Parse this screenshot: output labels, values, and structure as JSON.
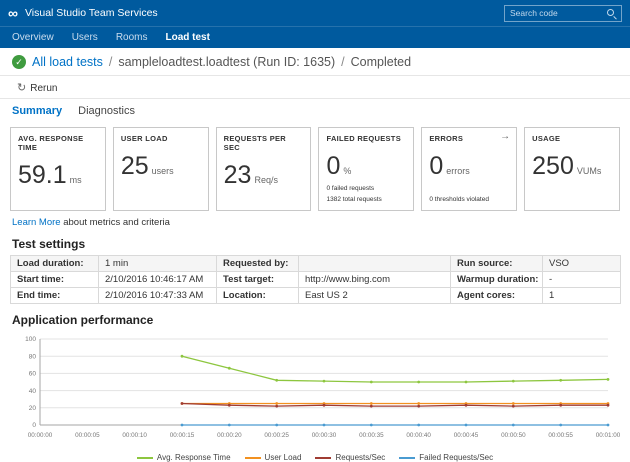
{
  "colors": {
    "header_bg": "#005a9e",
    "accent": "#0072c6",
    "success_green": "#3f9b3f"
  },
  "header": {
    "app_title": "Visual Studio Team Services",
    "search_placeholder": "Search code"
  },
  "nav": {
    "tabs": [
      {
        "label": "Overview"
      },
      {
        "label": "Users"
      },
      {
        "label": "Rooms"
      },
      {
        "label": "Load test"
      }
    ]
  },
  "breadcrumb": {
    "link": "All load tests",
    "sep": "/",
    "run_name": "sampleloadtest.loadtest (Run ID: 1635)",
    "status": "Completed",
    "check_icon": "✓"
  },
  "toolbar": {
    "rerun_label": "Rerun",
    "rerun_icon": "↻"
  },
  "pivots": [
    {
      "label": "Summary"
    },
    {
      "label": "Diagnostics"
    }
  ],
  "cards": [
    {
      "title": "AVG. RESPONSE TIME",
      "value": "59.1",
      "unit": "ms"
    },
    {
      "title": "USER LOAD",
      "value": "25",
      "unit": "users"
    },
    {
      "title": "REQUESTS PER SEC",
      "value": "23",
      "unit": "Req/s"
    },
    {
      "title": "FAILED REQUESTS",
      "value": "0",
      "unit": "%",
      "details": [
        "0 failed requests",
        "1382 total requests"
      ]
    },
    {
      "title": "ERRORS",
      "value": "0",
      "unit": "errors",
      "details": [
        "0 thresholds violated"
      ],
      "arrow": "→"
    },
    {
      "title": "USAGE",
      "value": "250",
      "unit": "VUMs"
    }
  ],
  "learn_more": {
    "link_text": "Learn More",
    "rest_text": " about metrics and criteria"
  },
  "sections": {
    "test_settings": "Test settings",
    "application_performance": "Application performance"
  },
  "test_settings": {
    "rows": [
      [
        {
          "label": "Load duration:",
          "value": "1 min"
        },
        {
          "label": "Requested by:",
          "value": ""
        },
        {
          "label": "Run source:",
          "value": "VSO"
        }
      ],
      [
        {
          "label": "Start time:",
          "value": "2/10/2016 10:46:17 AM"
        },
        {
          "label": "Test target:",
          "value": "http://www.bing.com"
        },
        {
          "label": "Warmup duration:",
          "value": "-"
        }
      ],
      [
        {
          "label": "End time:",
          "value": "2/10/2016 10:47:33 AM"
        },
        {
          "label": "Location:",
          "value": "East US 2"
        },
        {
          "label": "Agent cores:",
          "value": "1"
        }
      ]
    ]
  },
  "chart_data": {
    "type": "line",
    "title": "Application performance",
    "x": [
      "00:00:15",
      "00:00:20",
      "00:00:25",
      "00:00:30",
      "00:00:35",
      "00:00:40",
      "00:00:45",
      "00:00:50",
      "00:00:55",
      "00:01:00"
    ],
    "x_ticks": [
      "00:00:00",
      "00:00:05",
      "00:00:10",
      "00:00:15",
      "00:00:20",
      "00:00:25",
      "00:00:30",
      "00:00:35",
      "00:00:40",
      "00:00:45",
      "00:00:50",
      "00:00:55",
      "00:01:00"
    ],
    "ylim": [
      0,
      100
    ],
    "y_ticks": [
      0,
      20,
      40,
      60,
      80,
      100
    ],
    "grid": true,
    "legend_position": "bottom",
    "series": [
      {
        "name": "Avg. Response Time",
        "color": "#8dc63f",
        "values": [
          80,
          66,
          52,
          51,
          50,
          50,
          50,
          51,
          52,
          53
        ]
      },
      {
        "name": "User Load",
        "color": "#f29120",
        "values": [
          25,
          25,
          25,
          25,
          25,
          25,
          25,
          25,
          25,
          25
        ]
      },
      {
        "name": "Requests/Sec",
        "color": "#a03c33",
        "values": [
          25,
          23,
          22,
          23,
          22,
          22,
          23,
          22,
          23,
          23
        ]
      },
      {
        "name": "Failed Requests/Sec",
        "color": "#4a9bd1",
        "values": [
          0,
          0,
          0,
          0,
          0,
          0,
          0,
          0,
          0,
          0
        ]
      }
    ]
  }
}
